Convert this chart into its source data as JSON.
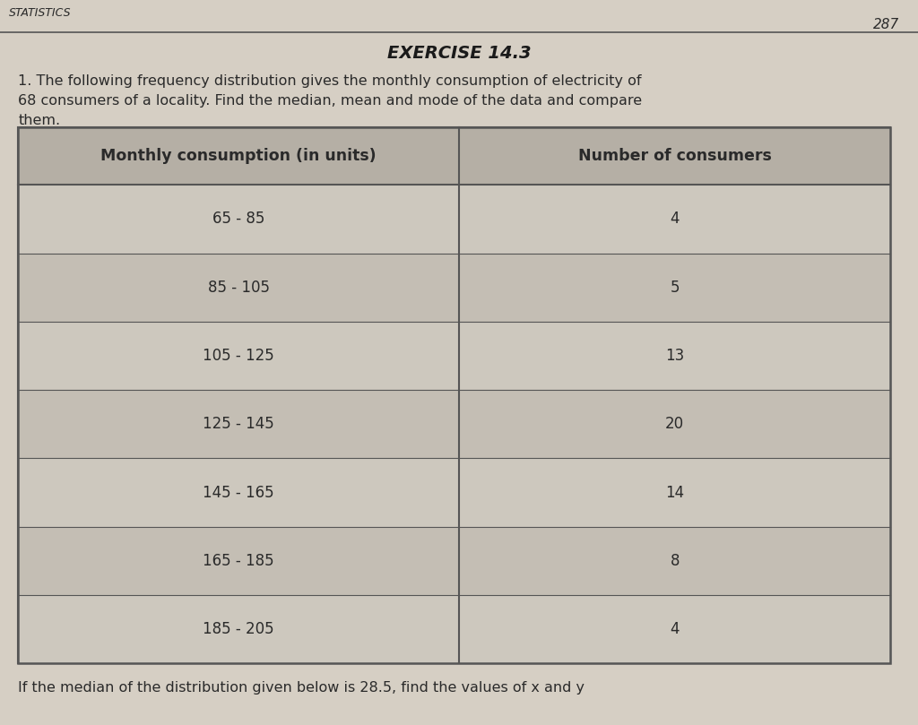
{
  "page_number": "287",
  "header_text": "STATISTICS",
  "exercise_title": "EXERCISE 14.3",
  "question_number": "1.",
  "question_line1": "The following frequency distribution gives the monthly consumption of electricity of",
  "question_line2": "68 consumers of a locality. Find the median, mean and mode of the data and compare",
  "question_line3": "them.",
  "footer_text": "If the median of the distribution given below is 28.5, find the values of x and y",
  "col1_header": "Monthly consumption (in units)",
  "col2_header": "Number of consumers",
  "rows": [
    [
      "65 - 85",
      "4"
    ],
    [
      "85 - 105",
      "5"
    ],
    [
      "105 - 125",
      "13"
    ],
    [
      "125 - 145",
      "20"
    ],
    [
      "145 - 165",
      "14"
    ],
    [
      "165 - 185",
      "8"
    ],
    [
      "185 - 205",
      "4"
    ]
  ],
  "bg_color": "#d6cfc4",
  "table_bg": "#cdc8be",
  "header_row_bg": "#b5afa5",
  "text_color": "#2a2a2a",
  "line_color": "#555555",
  "title_color": "#1a1a1a"
}
